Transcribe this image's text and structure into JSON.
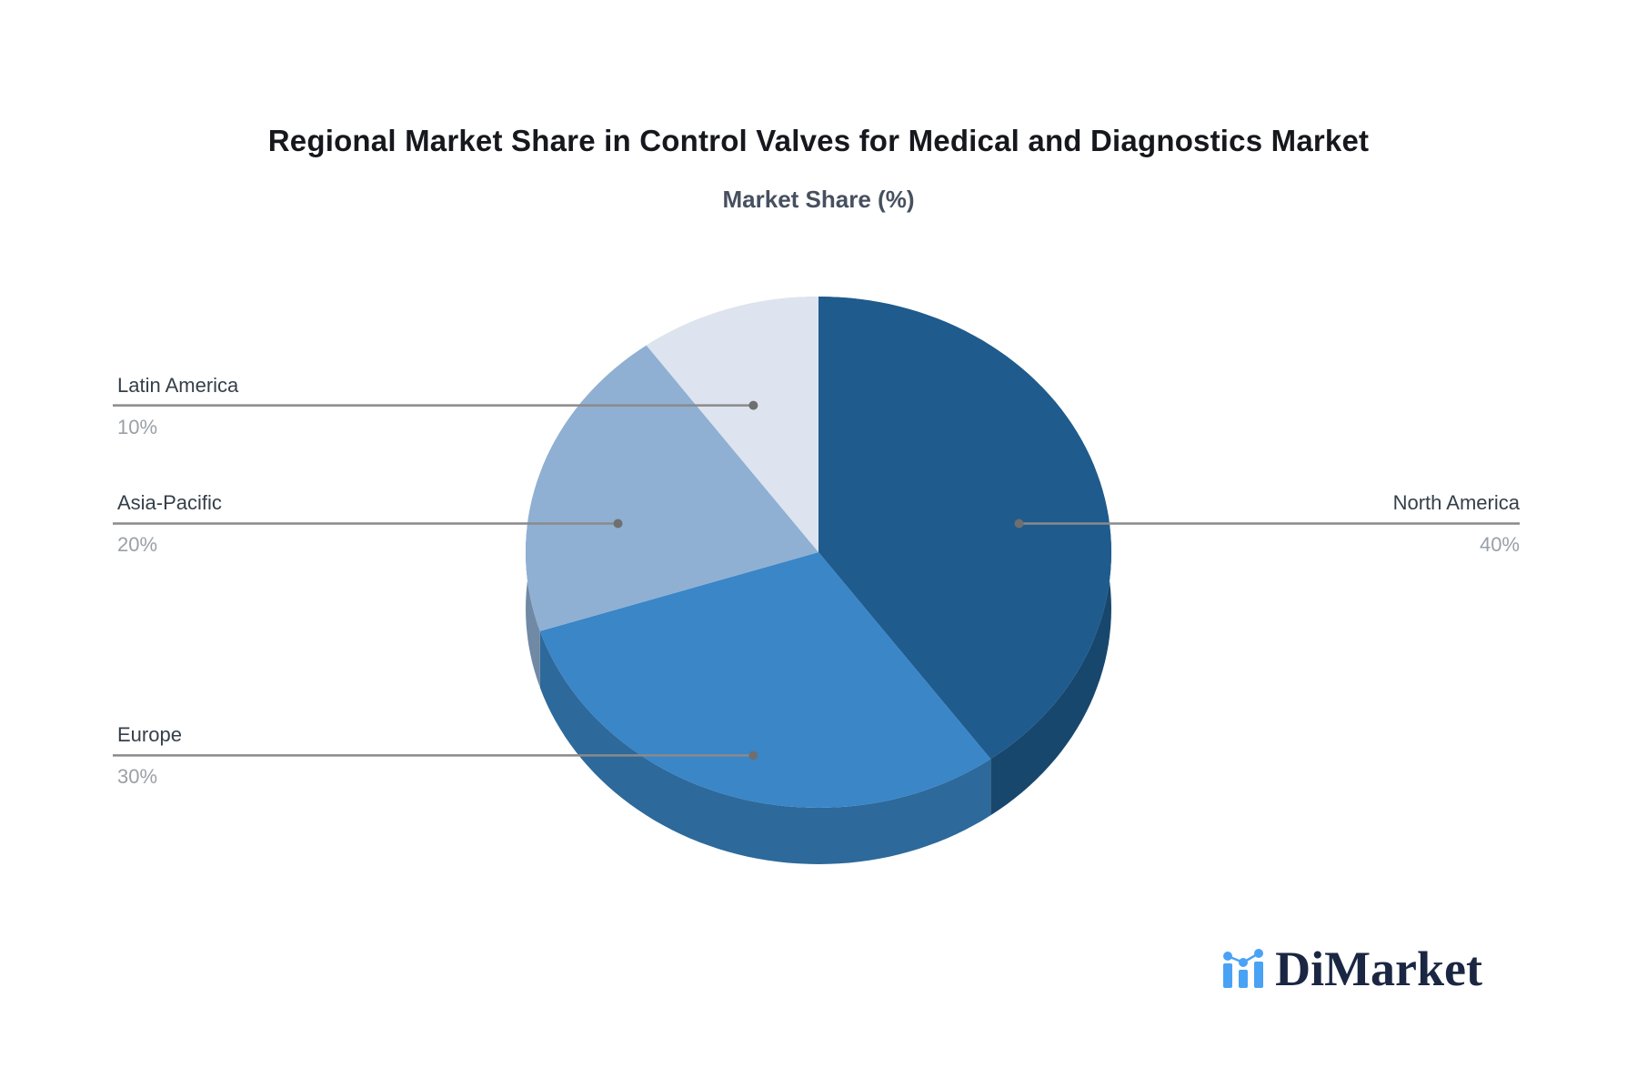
{
  "page": {
    "background": "#ffffff"
  },
  "chart_data": {
    "type": "pie",
    "title": "Regional Market Share in Control Valves for Medical and Diagnostics Market",
    "subtitle": "Market Share (%)",
    "unit": "%",
    "effect": "3d-pie",
    "start_angle_deg": 0,
    "direction": "clockwise",
    "legend": "none",
    "label_style": "leader-lines",
    "categories": [
      "North America",
      "Europe",
      "Asia-Pacific",
      "Latin America"
    ],
    "values": [
      40,
      30,
      20,
      10
    ],
    "slices": [
      {
        "name": "North America",
        "value": 40,
        "label": "40%",
        "color": "#1f5b8d"
      },
      {
        "name": "Europe",
        "value": 30,
        "label": "30%",
        "color": "#3a86c7"
      },
      {
        "name": "Asia-Pacific",
        "value": 20,
        "label": "20%",
        "color": "#8fb0d3"
      },
      {
        "name": "Latin America",
        "value": 10,
        "label": "10%",
        "color": "#dde4ef"
      }
    ]
  },
  "brand": {
    "name": "DiMarket",
    "icon": "bar-line-chart-icon",
    "icon_color": "#4aa2f5",
    "text_color": "#1b2742"
  },
  "colors": {
    "title_text": "#16181d",
    "subtitle_text": "#47505f",
    "label_text": "#353f49",
    "percent_text": "#9aa0a6",
    "leader_line": "#8a8a8a",
    "leader_dot": "#6f6f6f"
  }
}
